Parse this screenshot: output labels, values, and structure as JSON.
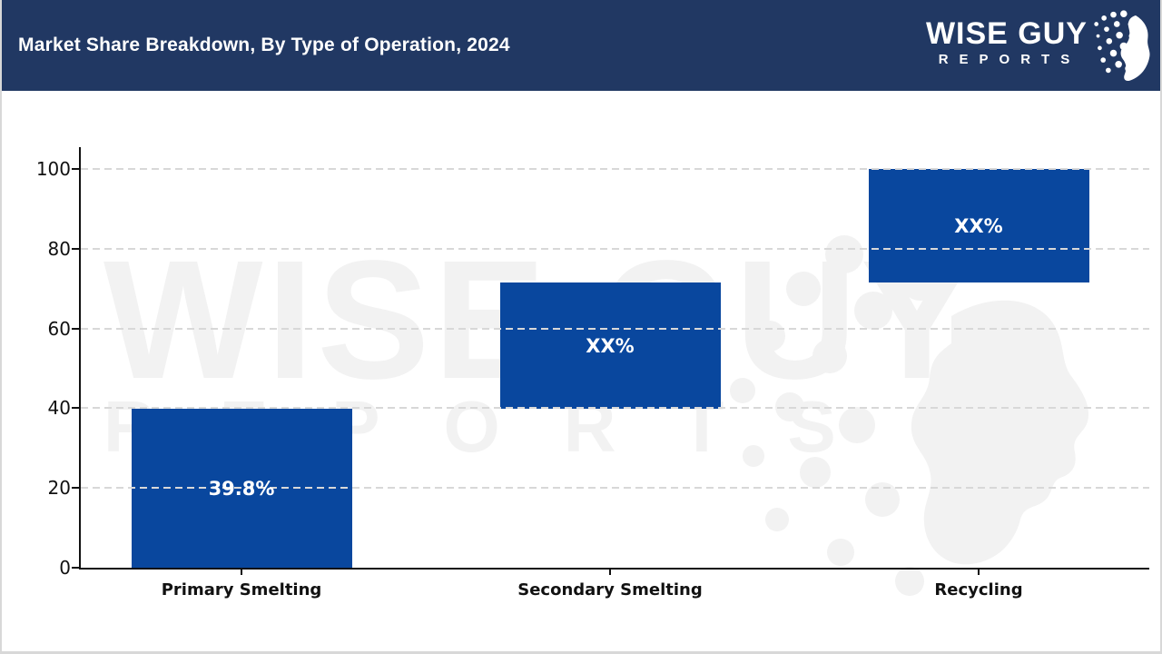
{
  "header": {
    "title": "Market Share Breakdown, By Type of Operation, 2024",
    "logo": {
      "line1": "WISE GUY",
      "line2": "REPORTS"
    }
  },
  "watermark": {
    "line1": "WISE GUY",
    "line2": "REPORTS"
  },
  "colors": {
    "header_bg": "#213863",
    "bar": "#09479e",
    "grid": "#d8d8d8",
    "axis": "#111111",
    "bar_label": "#ffffff",
    "watermark": "#f2f2f2"
  },
  "chart_data": {
    "type": "bar",
    "variant": "stacked-waterfall",
    "title": "Market Share Breakdown, By Type of Operation, 2024",
    "categories": [
      "Primary Smelting",
      "Secondary Smelting",
      "Recycling"
    ],
    "segments": [
      {
        "category": "Primary Smelting",
        "start": 0,
        "end": 39.8,
        "label": "39.8%"
      },
      {
        "category": "Secondary Smelting",
        "start": 39.8,
        "end": 71.5,
        "label": "XX%"
      },
      {
        "category": "Recycling",
        "start": 71.5,
        "end": 100,
        "label": "XX%"
      }
    ],
    "xlabel": "",
    "ylabel": "",
    "ylim": [
      0,
      100
    ],
    "yticks": [
      0,
      20,
      40,
      60,
      80,
      100
    ],
    "grid": "horizontal-dashed",
    "legend": "none",
    "bar_color": "#09479e"
  }
}
